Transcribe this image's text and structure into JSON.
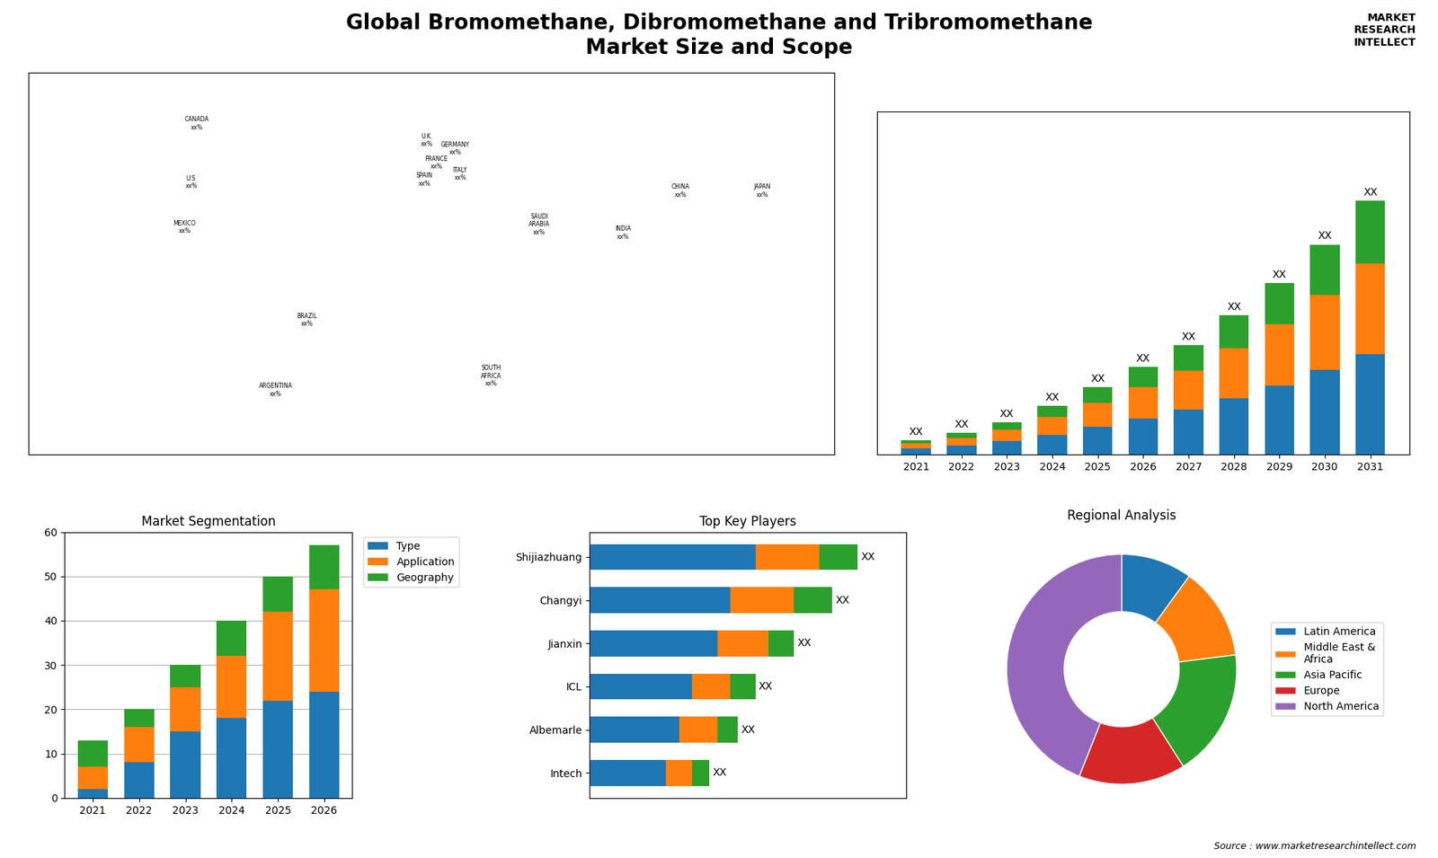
{
  "title": "Global Bromomethane, Dibromomethane and Tribromomethane\nMarket Size and Scope",
  "annotations": [
    "MARKET\nRESEARCH\nINTELLECT",
    "Source : www.marketresearchintellect.com"
  ],
  "chart_data": [
    {
      "type": "map",
      "xlim": [
        -168,
        168
      ],
      "ylim": [
        -58,
        78
      ],
      "tick_labels": false,
      "annotations": [
        {
          "text": "CANADA\nxx%",
          "x": -98,
          "y": 60
        },
        {
          "text": "U.S.\nxx%",
          "x": -100,
          "y": 39
        },
        {
          "text": "MEXICO\nxx%",
          "x": -103,
          "y": 23
        },
        {
          "text": "BRAZIL\nxx%",
          "x": -52,
          "y": -10
        },
        {
          "text": "ARGENTINA\nxx%",
          "x": -65,
          "y": -35
        },
        {
          "text": "U.K.\nxx%",
          "x": -2,
          "y": 54
        },
        {
          "text": "FRANCE\nxx%",
          "x": 2,
          "y": 46
        },
        {
          "text": "SPAIN\nxx%",
          "x": -3,
          "y": 40
        },
        {
          "text": "GERMANY\nxx%",
          "x": 10,
          "y": 51
        },
        {
          "text": "ITALY\nxx%",
          "x": 12,
          "y": 42
        },
        {
          "text": "SAUDI\nARABIA\nxx%",
          "x": 45,
          "y": 24
        },
        {
          "text": "SOUTH\nAFRICA\nxx%",
          "x": 25,
          "y": -30
        },
        {
          "text": "CHINA\nxx%",
          "x": 104,
          "y": 36
        },
        {
          "text": "INDIA\nxx%",
          "x": 80,
          "y": 21
        },
        {
          "text": "JAPAN\nxx%",
          "x": 138,
          "y": 36
        }
      ]
    },
    {
      "type": "bar",
      "stacked": true,
      "tick_labels": "x",
      "data_labels": true,
      "categories": [
        "2021",
        "2022",
        "2023",
        "2024",
        "2025",
        "2026",
        "2027",
        "2028",
        "2029",
        "2030",
        "2031"
      ],
      "ylim": [
        0,
        54.675
      ],
      "series": [
        {
          "values": [
            1.0,
            1.5,
            2.2,
            3.2,
            4.5,
            5.8,
            7.2,
            9.0,
            11.0,
            13.5,
            16.0
          ]
        },
        {
          "values": [
            0.8,
            1.2,
            1.8,
            2.8,
            3.8,
            5.0,
            6.2,
            8.0,
            9.8,
            12.0,
            14.5
          ]
        },
        {
          "values": [
            0.5,
            0.8,
            1.2,
            1.8,
            2.5,
            3.2,
            4.0,
            5.2,
            6.5,
            8.0,
            10.0
          ],
          "value_labels": [
            "XX",
            "XX",
            "XX",
            "XX",
            "XX",
            "XX",
            "XX",
            "XX",
            "XX",
            "XX",
            "XX"
          ]
        }
      ]
    },
    {
      "type": "bar",
      "stacked": true,
      "title": "Market Segmentation",
      "categories": [
        "2021",
        "2022",
        "2023",
        "2024",
        "2025",
        "2026"
      ],
      "ylim": [
        0,
        60
      ],
      "yticks": [
        0,
        10,
        20,
        30,
        40,
        50,
        60
      ],
      "grid": true,
      "legend": "upper left",
      "series": [
        {
          "name": "Type",
          "values": [
            2,
            8,
            15,
            18,
            22,
            24
          ]
        },
        {
          "name": "Application",
          "values": [
            5,
            8,
            10,
            14,
            20,
            23
          ]
        },
        {
          "name": "Geography",
          "values": [
            6,
            4,
            5,
            8,
            8,
            10
          ]
        }
      ]
    },
    {
      "type": "bar",
      "stacked": true,
      "orientation": "horizontal",
      "title": "Top Key Players",
      "tick_labels": "y",
      "data_labels": true,
      "categories": [
        "Shijiazhuang",
        "Changyi",
        "Jianxin",
        "ICL",
        "Albemarle",
        "Intech"
      ],
      "xlim": [
        0,
        12.39
      ],
      "series": [
        {
          "values": [
            6.5,
            5.5,
            5.0,
            4.0,
            3.5,
            3.0
          ]
        },
        {
          "values": [
            2.5,
            2.5,
            2.0,
            1.5,
            1.5,
            1.0
          ]
        },
        {
          "values": [
            1.5,
            1.5,
            1.0,
            1.0,
            0.8,
            0.7
          ],
          "value_labels": [
            "XX",
            "XX",
            "XX",
            "XX",
            "XX",
            "XX"
          ]
        }
      ]
    },
    {
      "type": "pie",
      "title": "Regional Analysis",
      "legend": "center left",
      "categories": [
        "Latin America",
        "Middle East &\nAfrica",
        "Asia Pacific",
        "Europe",
        "North America"
      ],
      "values": [
        10,
        13,
        18,
        15,
        44
      ]
    }
  ]
}
